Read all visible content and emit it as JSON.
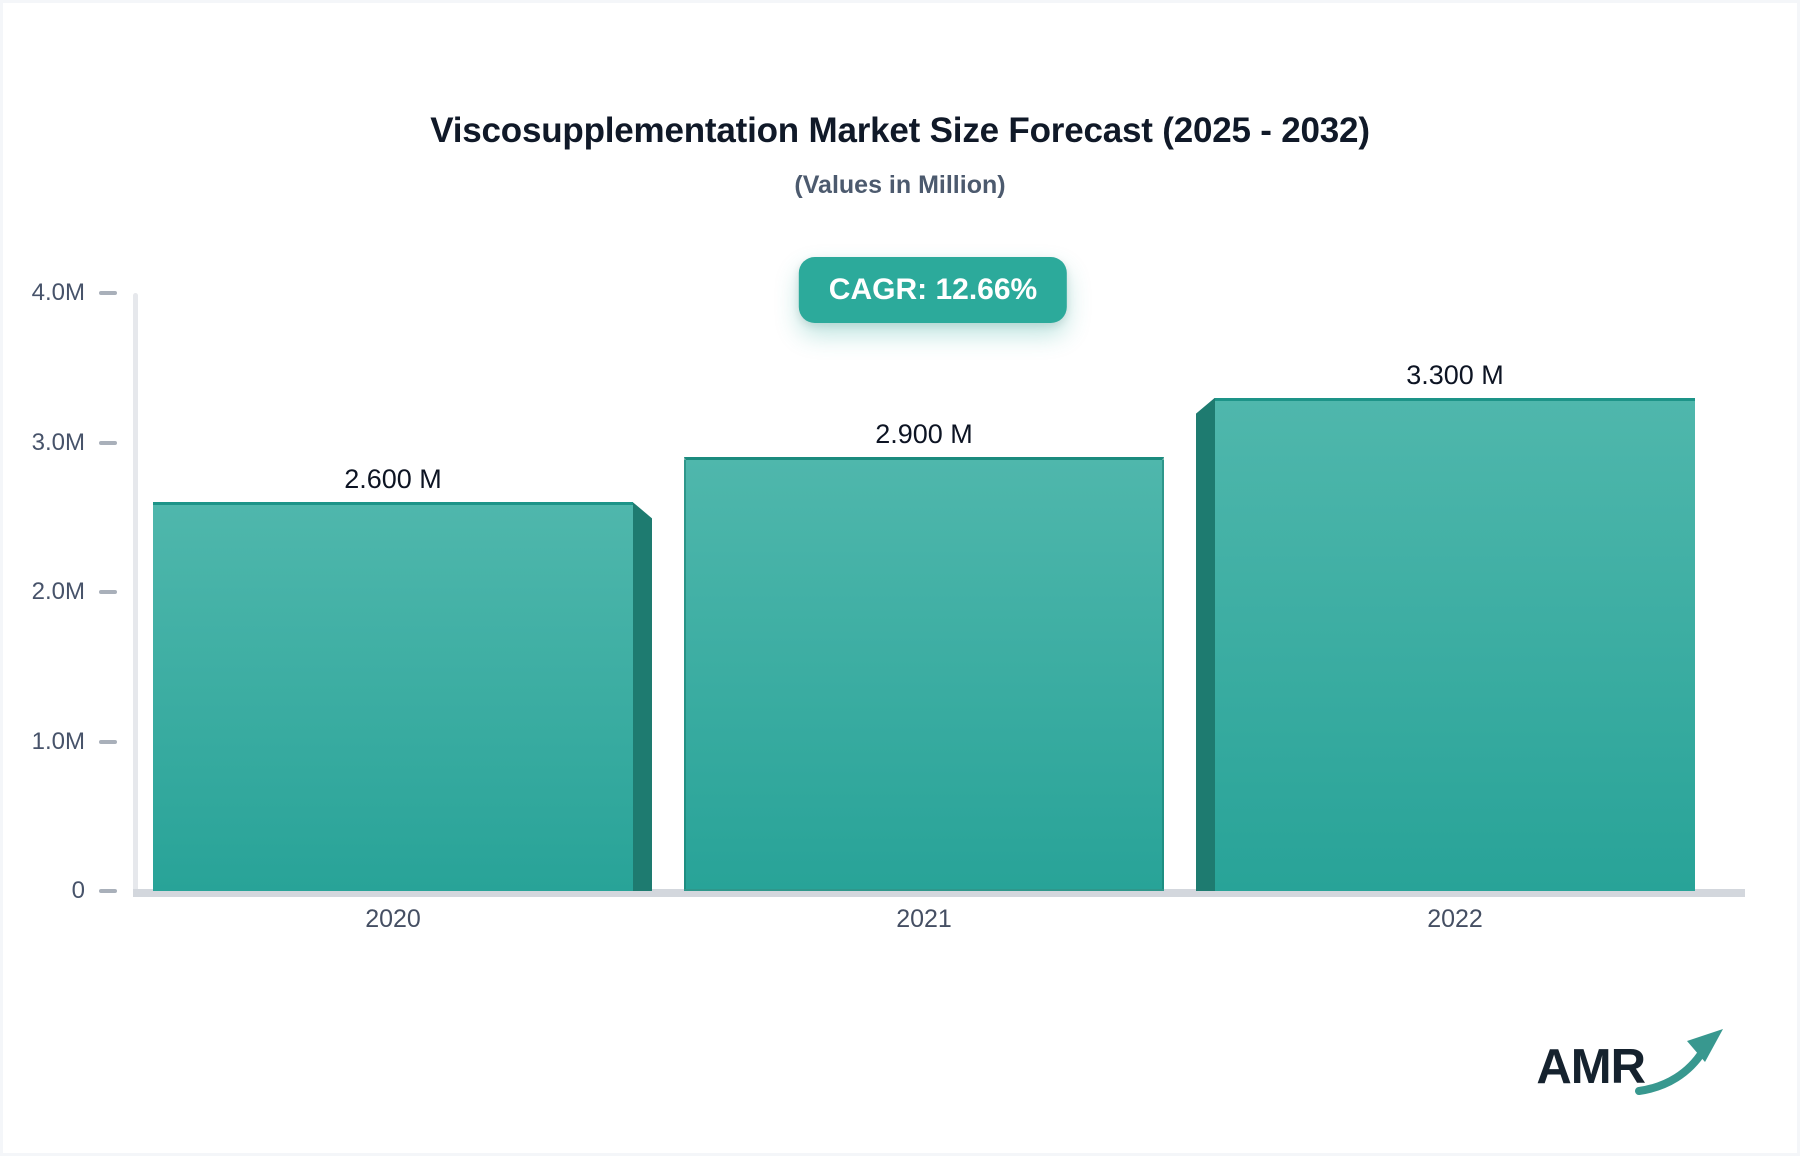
{
  "header": {
    "title": "Viscosupplementation Market Size Forecast (2025 - 2032)",
    "subtitle": "(Values in Million)",
    "cagr_label": "CAGR: 12.66%"
  },
  "chart_data": {
    "type": "bar",
    "title": "Viscosupplementation Market Size Forecast (2025 - 2032)",
    "subtitle": "(Values in Million)",
    "categories": [
      "2020",
      "2021",
      "2022"
    ],
    "values": [
      2.6,
      2.9,
      3.3
    ],
    "value_labels": [
      "2.600 M",
      "2.900 M",
      "3.300 M"
    ],
    "unit": "Million",
    "xlabel": "",
    "ylabel": "",
    "ylim": [
      0,
      4
    ],
    "yticks": [
      "4.0M",
      "3.0M",
      "2.0M",
      "1.0M",
      "0"
    ],
    "grid": false,
    "legend": false,
    "cagr": "12.66%",
    "colors": {
      "bar_face_top": "#4fb7ac",
      "bar_face_bottom": "#28a398",
      "bar_side": "#1e7b70",
      "bar_edge": "#1d9488",
      "badge": "#2caa9b",
      "axis_line": "#e6e8ec",
      "baseline": "#d3d7dd"
    }
  },
  "logo": {
    "text": "AMR",
    "arrow_icon": "trend-up-arrow-icon",
    "text_color": "#15222e",
    "arrow_color": "#38988f"
  }
}
